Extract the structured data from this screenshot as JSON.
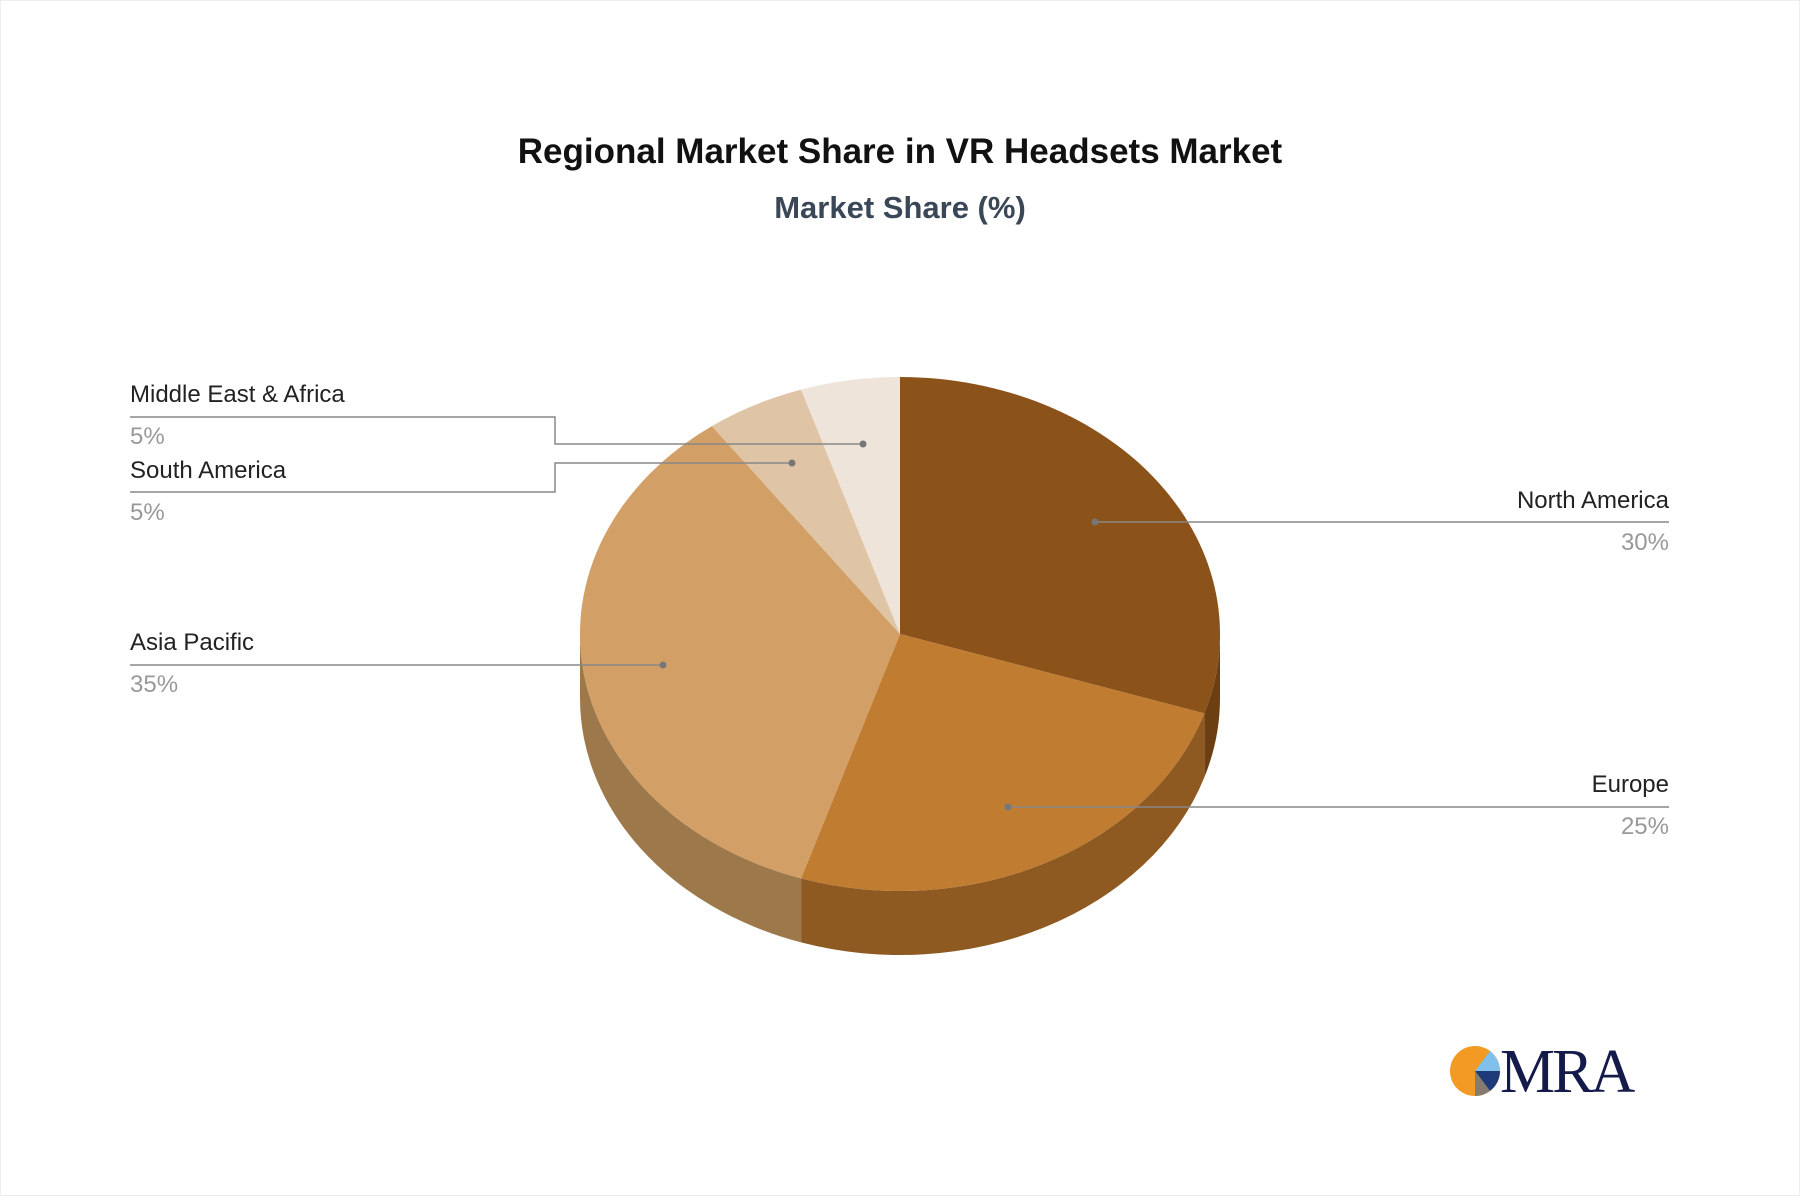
{
  "chart_data": {
    "type": "pie",
    "title": "Regional Market Share in VR Headsets Market",
    "subtitle": "Market Share (%)",
    "style": "3d",
    "slices": [
      {
        "label": "North America",
        "value": 30,
        "display": "30%",
        "color": "#8B531A",
        "side_color": "#6C3F12"
      },
      {
        "label": "Europe",
        "value": 25,
        "display": "25%",
        "color": "#C07C31",
        "side_color": "#8E5A22"
      },
      {
        "label": "Asia Pacific",
        "value": 35,
        "display": "35%",
        "color": "#D2A067",
        "side_color": "#9C784B"
      },
      {
        "label": "South America",
        "value": 5,
        "display": "5%",
        "color": "#DFC4A5",
        "side_color": "#A99479"
      },
      {
        "label": "Middle East & Africa",
        "value": 5,
        "display": "5%",
        "color": "#EEE4DA",
        "side_color": "#B5ACA3"
      }
    ]
  },
  "logo": {
    "text": "MRA",
    "colors": [
      "#F39A25",
      "#7FC1EA",
      "#1F3A78",
      "#857B70"
    ],
    "text_color": "#141A4A"
  }
}
